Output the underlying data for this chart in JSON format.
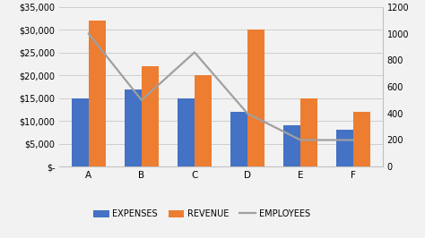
{
  "categories": [
    "A",
    "B",
    "C",
    "D",
    "E",
    "F"
  ],
  "expenses": [
    15000,
    17000,
    15000,
    12000,
    9000,
    8000
  ],
  "revenue": [
    32000,
    22000,
    20000,
    30000,
    15000,
    12000
  ],
  "employees": [
    1000,
    500,
    860,
    400,
    200,
    200
  ],
  "bar_colors": [
    "#4472c4",
    "#ed7d31"
  ],
  "line_color": "#a0a0a0",
  "background_color": "#f2f2f2",
  "ylim_left": [
    0,
    35000
  ],
  "ylim_right": [
    0,
    1200
  ],
  "yticks_left": [
    0,
    5000,
    10000,
    15000,
    20000,
    25000,
    30000,
    35000
  ],
  "ytick_labels_left": [
    "$-",
    "$5,000",
    "$10,000",
    "$15,000",
    "$20,000",
    "$25,000",
    "$30,000",
    "$35,000"
  ],
  "yticks_right": [
    0,
    200,
    400,
    600,
    800,
    1000,
    1200
  ],
  "legend_labels": [
    "EXPENSES",
    "REVENUE",
    "EMPLOYEES"
  ],
  "bar_width": 0.32,
  "figsize": [
    4.74,
    2.66
  ],
  "dpi": 100
}
